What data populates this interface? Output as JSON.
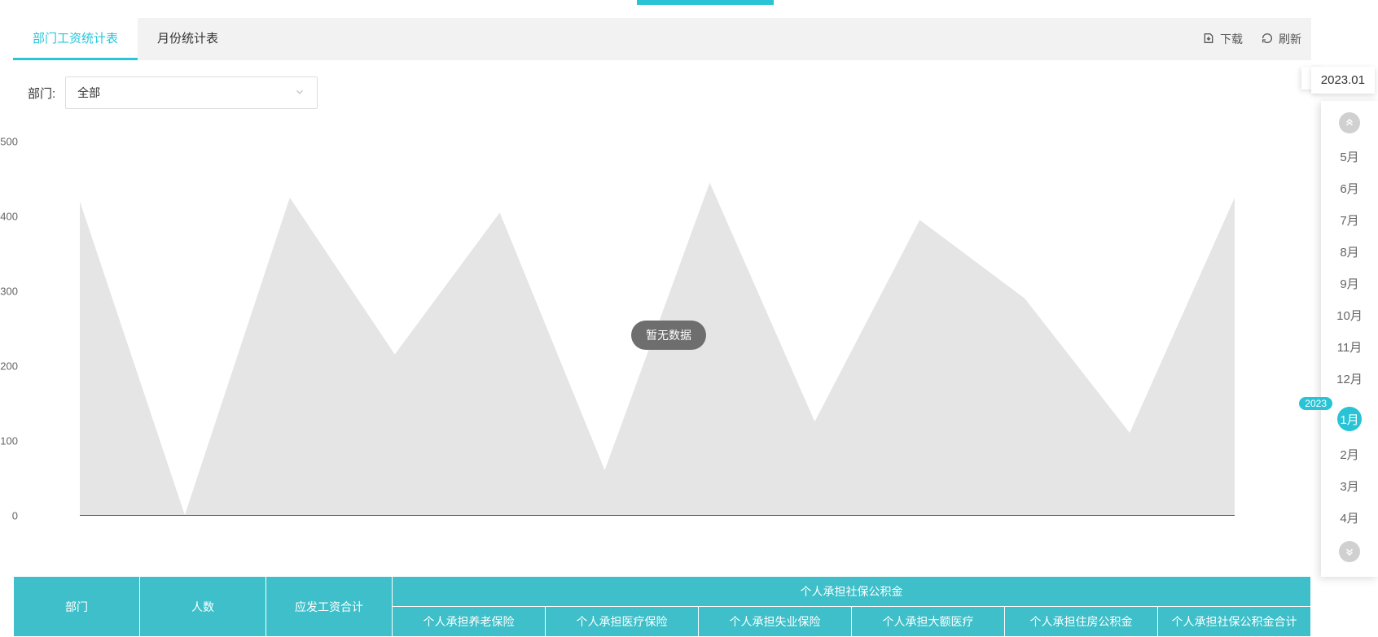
{
  "colors": {
    "accent": "#29c3d6",
    "chart_fill": "#e5e5e5",
    "overlay_bg": "#6e6e6e",
    "header_cell": "#3ebfc9",
    "axis_text": "#666666",
    "border": "#dddddd"
  },
  "tabs": {
    "items": [
      {
        "label": "部门工资统计表",
        "active": true
      },
      {
        "label": "月份统计表",
        "active": false
      }
    ]
  },
  "toolbar": {
    "download_label": "下载",
    "refresh_label": "刷新"
  },
  "filter": {
    "label": "部门:",
    "selected": "全部"
  },
  "chart": {
    "type": "area",
    "ylim": [
      0,
      500
    ],
    "ytick_step": 100,
    "yticks": [
      0,
      100,
      200,
      300,
      400,
      500
    ],
    "fill_color": "#e5e5e5",
    "background_color": "#ffffff",
    "axis_text_color": "#666666",
    "axis_fontsize": 13,
    "shape_values": [
      420,
      0,
      425,
      215,
      405,
      60,
      445,
      125,
      395,
      290,
      110,
      425
    ],
    "overlay_text": "暂无数据"
  },
  "table": {
    "group_header": "个人承担社保公积金",
    "columns_left": [
      "部门",
      "人数",
      "应发工资合计"
    ],
    "columns_sub": [
      "个人承担养老保险",
      "个人承担医疗保险",
      "个人承担失业保险",
      "个人承担大额医疗",
      "个人承担住房公积金",
      "个人承担社保公积金合计"
    ],
    "header_bg": "#3ebfc9",
    "header_text_color": "#ffffff"
  },
  "side": {
    "current_label": "2023.01",
    "year_badge": "2023",
    "months": [
      {
        "label": "5月",
        "active": false
      },
      {
        "label": "6月",
        "active": false
      },
      {
        "label": "7月",
        "active": false
      },
      {
        "label": "8月",
        "active": false
      },
      {
        "label": "9月",
        "active": false
      },
      {
        "label": "10月",
        "active": false
      },
      {
        "label": "11月",
        "active": false
      },
      {
        "label": "12月",
        "active": false
      },
      {
        "label": "1月",
        "active": true
      },
      {
        "label": "2月",
        "active": false
      },
      {
        "label": "3月",
        "active": false
      },
      {
        "label": "4月",
        "active": false
      }
    ]
  }
}
